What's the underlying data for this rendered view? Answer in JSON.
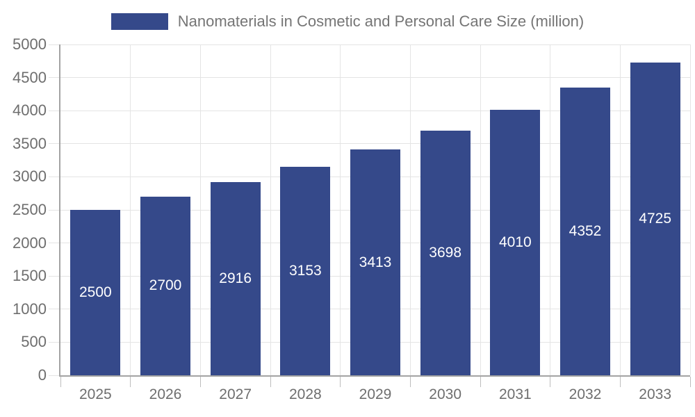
{
  "legend": {
    "label": "Nanomaterials in Cosmetic and Personal Care Size (million)"
  },
  "chart_data": {
    "type": "bar",
    "title": "Nanomaterials in Cosmetic and Personal Care Size (million)",
    "categories": [
      "2025",
      "2026",
      "2027",
      "2028",
      "2029",
      "2030",
      "2031",
      "2032",
      "2033"
    ],
    "values": [
      2500,
      2700,
      2916,
      3153,
      3413,
      3698,
      4010,
      4352,
      4725
    ],
    "xlabel": "",
    "ylabel": "",
    "ylim": [
      0,
      5000
    ],
    "y_tick_step": 500,
    "y_tick_labels": [
      "0",
      "500",
      "1000",
      "1500",
      "2000",
      "2500",
      "3000",
      "3500",
      "4000",
      "4500",
      "5000"
    ],
    "grid": true,
    "legend_position": "top-center",
    "bar_label_position": "inside-center",
    "colors": {
      "bar": "#35498A",
      "bar_label": "#FFFFFF",
      "grid": "#E4E4E4",
      "axis_line": "#A3A3A3",
      "tick_text": "#6E6E6E",
      "legend_text": "#757575"
    }
  }
}
